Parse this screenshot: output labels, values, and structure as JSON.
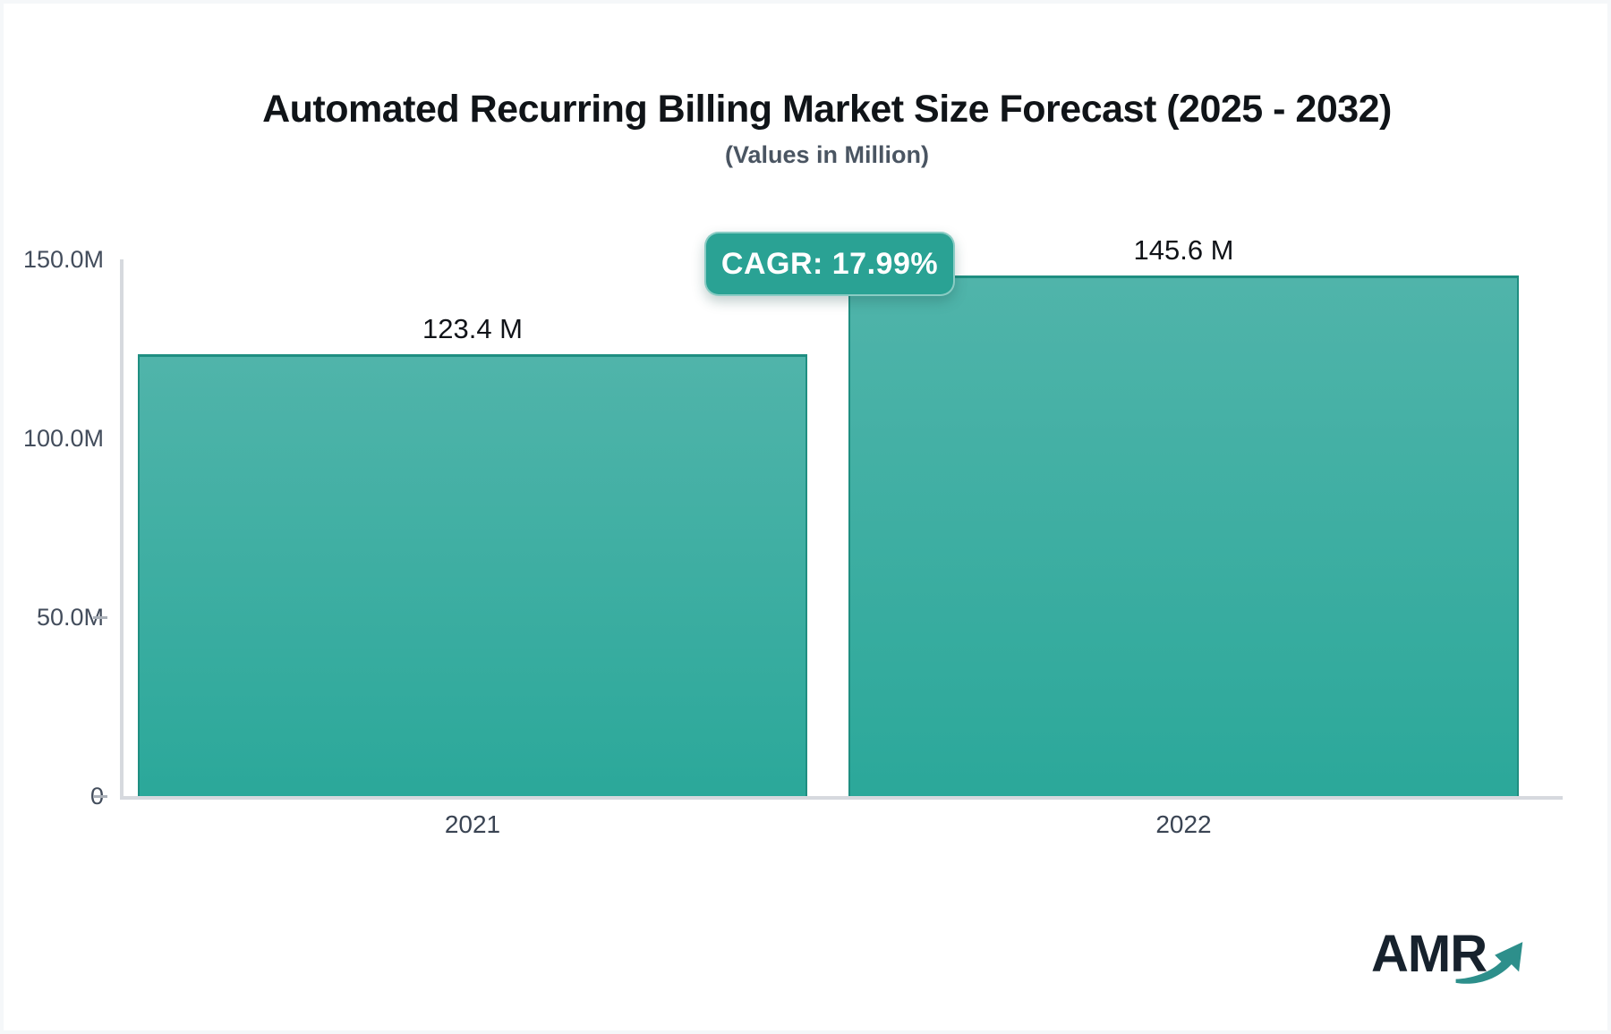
{
  "title": "Automated Recurring Billing Market Size Forecast (2025 - 2032)",
  "subtitle": "(Values in Million)",
  "cagr_badge": "CAGR: 17.99%",
  "logo": {
    "text": "AMR",
    "icon": "trend-up-arrow"
  },
  "colors": {
    "accent_teal": "#2aa596",
    "badge_bg": "#2aa294",
    "bar_gradient_top": "#50b4aa",
    "bar_gradient_bottom": "#2ba89a",
    "bar_border": "#1f8e81",
    "axis_line": "#d6d9de",
    "logo_arrow": "#2d8f8b",
    "logo_text": "#17222d"
  },
  "chart_data": {
    "type": "bar",
    "title": "Automated Recurring Billing Market Size Forecast (2025 - 2032)",
    "subtitle": "(Values in Million)",
    "categories": [
      "2021",
      "2022"
    ],
    "values": [
      123.4,
      145.6
    ],
    "value_labels": [
      "123.4 M",
      "145.6 M"
    ],
    "unit": "Million",
    "xlabel": "",
    "ylabel": "",
    "ylim": [
      0,
      150
    ],
    "yticks": [
      {
        "value": 0,
        "label": "0",
        "tick_mark": true
      },
      {
        "value": 50,
        "label": "50.0M",
        "tick_mark": true
      },
      {
        "value": 100,
        "label": "100.0M",
        "tick_mark": false
      },
      {
        "value": 150,
        "label": "150.0M",
        "tick_mark": false
      }
    ],
    "grid": false,
    "legend": false,
    "annotation": "CAGR: 17.99%"
  }
}
